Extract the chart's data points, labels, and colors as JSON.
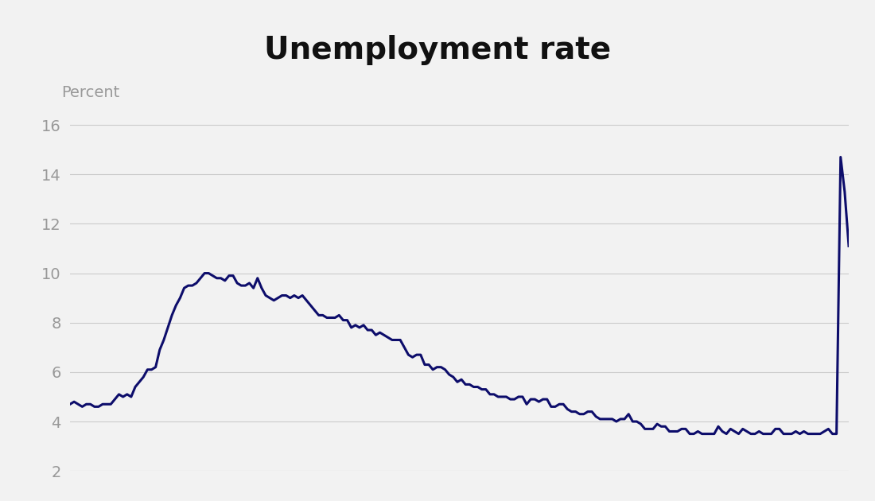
{
  "title": "Unemployment rate",
  "ylabel": "Percent",
  "background_color": "#f2f2f2",
  "line_color": "#0d0d6b",
  "line_width": 2.2,
  "ylim": [
    2,
    17
  ],
  "yticks": [
    2,
    4,
    6,
    8,
    10,
    12,
    14,
    16
  ],
  "title_fontsize": 28,
  "ylabel_fontsize": 14,
  "tick_fontsize": 14,
  "unemployment": [
    4.7,
    4.8,
    4.7,
    4.6,
    4.7,
    4.7,
    4.6,
    4.6,
    4.7,
    4.7,
    4.7,
    4.9,
    5.1,
    5.0,
    5.1,
    5.0,
    5.4,
    5.6,
    5.8,
    6.1,
    6.1,
    6.2,
    6.9,
    7.3,
    7.8,
    8.3,
    8.7,
    9.0,
    9.4,
    9.5,
    9.5,
    9.6,
    9.8,
    10.0,
    10.0,
    9.9,
    9.8,
    9.8,
    9.7,
    9.9,
    9.9,
    9.6,
    9.5,
    9.5,
    9.6,
    9.4,
    9.8,
    9.4,
    9.1,
    9.0,
    8.9,
    9.0,
    9.1,
    9.1,
    9.0,
    9.1,
    9.0,
    9.1,
    8.9,
    8.7,
    8.5,
    8.3,
    8.3,
    8.2,
    8.2,
    8.2,
    8.3,
    8.1,
    8.1,
    7.8,
    7.9,
    7.8,
    7.9,
    7.7,
    7.7,
    7.5,
    7.6,
    7.5,
    7.4,
    7.3,
    7.3,
    7.3,
    7.0,
    6.7,
    6.6,
    6.7,
    6.7,
    6.3,
    6.3,
    6.1,
    6.2,
    6.2,
    6.1,
    5.9,
    5.8,
    5.6,
    5.7,
    5.5,
    5.5,
    5.4,
    5.4,
    5.3,
    5.3,
    5.1,
    5.1,
    5.0,
    5.0,
    5.0,
    4.9,
    4.9,
    5.0,
    5.0,
    4.7,
    4.9,
    4.9,
    4.8,
    4.9,
    4.9,
    4.6,
    4.6,
    4.7,
    4.7,
    4.5,
    4.4,
    4.4,
    4.3,
    4.3,
    4.4,
    4.4,
    4.2,
    4.1,
    4.1,
    4.1,
    4.1,
    4.0,
    4.1,
    4.1,
    4.3,
    4.0,
    4.0,
    3.9,
    3.7,
    3.7,
    3.7,
    3.9,
    3.8,
    3.8,
    3.6,
    3.6,
    3.6,
    3.7,
    3.7,
    3.5,
    3.5,
    3.6,
    3.5,
    3.5,
    3.5,
    3.5,
    3.8,
    3.6,
    3.5,
    3.7,
    3.6,
    3.5,
    3.7,
    3.6,
    3.5,
    3.5,
    3.6,
    3.5,
    3.5,
    3.5,
    3.7,
    3.7,
    3.5,
    3.5,
    3.5,
    3.6,
    3.5,
    3.6,
    3.5,
    3.5,
    3.5,
    3.5,
    3.6,
    3.7,
    3.5,
    3.5,
    14.7,
    13.3,
    11.1
  ]
}
